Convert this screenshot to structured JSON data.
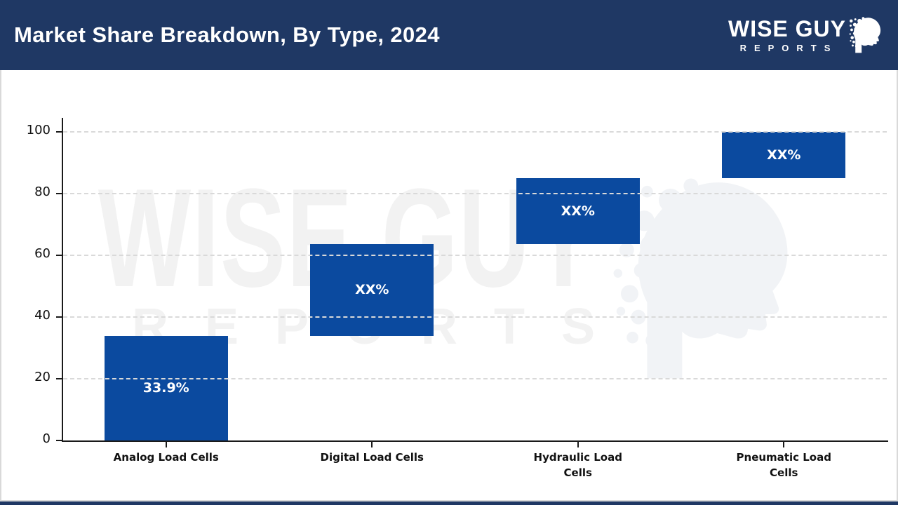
{
  "header": {
    "title": "Market Share Breakdown, By Type, 2024",
    "bg_color": "#1f3864",
    "logo": {
      "line1": "WISE GUY",
      "line2": "REPORTS"
    }
  },
  "watermark": {
    "line1": "WISE GUY",
    "line2": "REPORTS"
  },
  "chart_data": {
    "type": "bar",
    "subtype": "waterfall",
    "title": "Market Share Breakdown, By Type, 2024",
    "categories": [
      "Analog Load Cells",
      "Digital Load Cells",
      "Hydraulic Load Cells",
      "Pneumatic Load Cells"
    ],
    "segments": [
      {
        "base": 0,
        "top": 33.9,
        "value": 33.9,
        "label": "33.9%"
      },
      {
        "base": 33.9,
        "top": 63.6,
        "value": 29.7,
        "label": "XX%"
      },
      {
        "base": 63.6,
        "top": 84.8,
        "value": 21.2,
        "label": "XX%"
      },
      {
        "base": 84.8,
        "top": 100,
        "value": 15.2,
        "label": "XX%"
      }
    ],
    "xlabel": "",
    "ylabel": "",
    "ylim": [
      0,
      105
    ],
    "yticks": [
      0,
      20,
      40,
      60,
      80,
      100
    ],
    "grid": "horizontal-dashed",
    "legend": "none",
    "bar_color": "#0b4a9f",
    "bar_label_color": "#ffffff",
    "grid_color": "#d9d9d9",
    "axis_color": "#1a1a1a"
  }
}
